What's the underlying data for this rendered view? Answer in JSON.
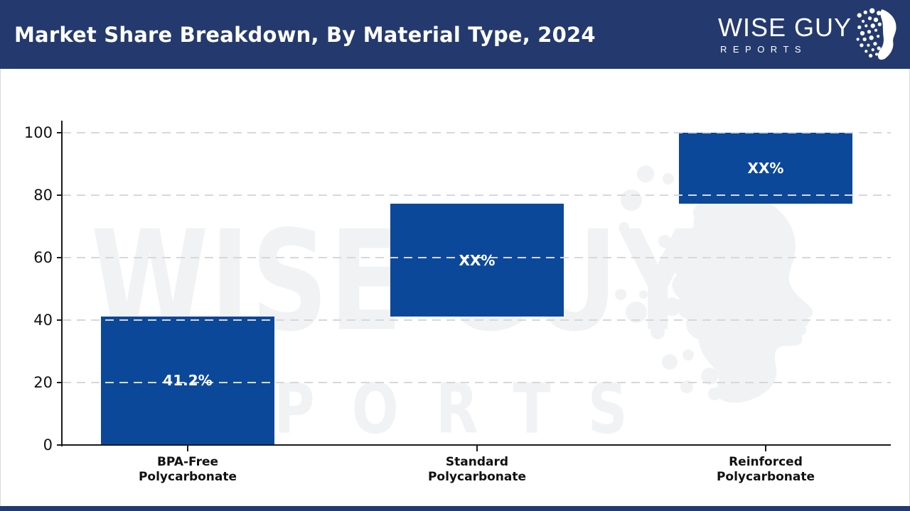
{
  "header": {
    "title": "Market Share Breakdown, By Material Type, 2024",
    "logo": {
      "line1": "WISE GUY",
      "line2": "REPORTS"
    }
  },
  "watermark": {
    "line1": "WISE GUY",
    "line2": "REPORTS"
  },
  "colors": {
    "header_bg": "#243a6e",
    "footer_bg": "#243a6e",
    "bar": "#0c4899",
    "bar_label": "#ffffff",
    "grid": "#d8d8d8",
    "axis": "#1a1a1a",
    "tick_text": "#111111",
    "watermark": "#f1f2f4"
  },
  "chart_data": {
    "type": "bar",
    "variant": "stacked-waterfall",
    "title": "Market Share Breakdown, By Material Type, 2024",
    "categories": [
      "BPA-Free\nPolycarbonate",
      "Standard\nPolycarbonate",
      "Reinforced\nPolycarbonate"
    ],
    "segments": [
      {
        "category": "BPA-Free Polycarbonate",
        "start": 0,
        "end": 41.2,
        "value": 41.2,
        "label": "41.2%"
      },
      {
        "category": "Standard Polycarbonate",
        "start": 41.2,
        "end": 77.2,
        "value": 36.0,
        "label": "XX%"
      },
      {
        "category": "Reinforced Polycarbonate",
        "start": 77.2,
        "end": 100,
        "value": 22.8,
        "label": "XX%"
      }
    ],
    "xlabel": "",
    "ylabel": "",
    "ylim": [
      0,
      100
    ],
    "yticks": [
      0,
      20,
      40,
      60,
      80,
      100
    ],
    "grid": {
      "horizontal": true,
      "style": "dashed"
    },
    "legend": null
  }
}
